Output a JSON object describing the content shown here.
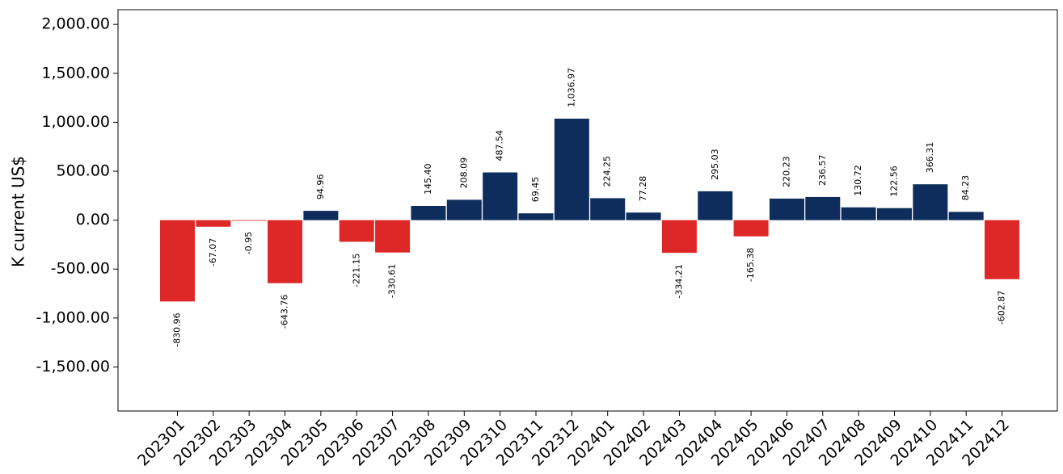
{
  "chart_data": {
    "type": "bar",
    "title": "",
    "xlabel": "",
    "ylabel": "K current US$",
    "ylim": [
      -1950,
      2150
    ],
    "yticks": [
      2000,
      1500,
      1000,
      500,
      0,
      -500,
      -1000,
      -1500
    ],
    "ytick_labels": [
      "2,000.00",
      "1,500.00",
      "1,000.00",
      "500.00",
      "0.00",
      "-500.00",
      "-1,000.00",
      "-1,500.00"
    ],
    "categories": [
      "202301",
      "202302",
      "202303",
      "202304",
      "202305",
      "202306",
      "202307",
      "202308",
      "202309",
      "202310",
      "202311",
      "202312",
      "202401",
      "202402",
      "202403",
      "202404",
      "202405",
      "202406",
      "202407",
      "202408",
      "202409",
      "202410",
      "202411",
      "202412"
    ],
    "values": [
      -830.96,
      -67.07,
      -0.95,
      -643.76,
      94.96,
      -221.15,
      -330.61,
      145.4,
      208.09,
      487.54,
      69.45,
      1036.97,
      224.25,
      77.28,
      -334.21,
      295.03,
      -165.38,
      220.23,
      236.57,
      130.72,
      122.56,
      366.31,
      84.23,
      -602.87
    ],
    "value_labels": [
      "-830.96",
      "-67.07",
      "-0.95",
      "-643.76",
      "94.96",
      "-221.15",
      "-330.61",
      "145.40",
      "208.09",
      "487.54",
      "69.45",
      "1,036.97",
      "224.25",
      "77.28",
      "-334.21",
      "295.03",
      "-165.38",
      "220.23",
      "236.57",
      "130.72",
      "122.56",
      "366.31",
      "84.23",
      "-602.87"
    ],
    "colors": {
      "positive": "#0e2d5c",
      "negative": "#de2727"
    },
    "grid": false,
    "legend": "none"
  }
}
